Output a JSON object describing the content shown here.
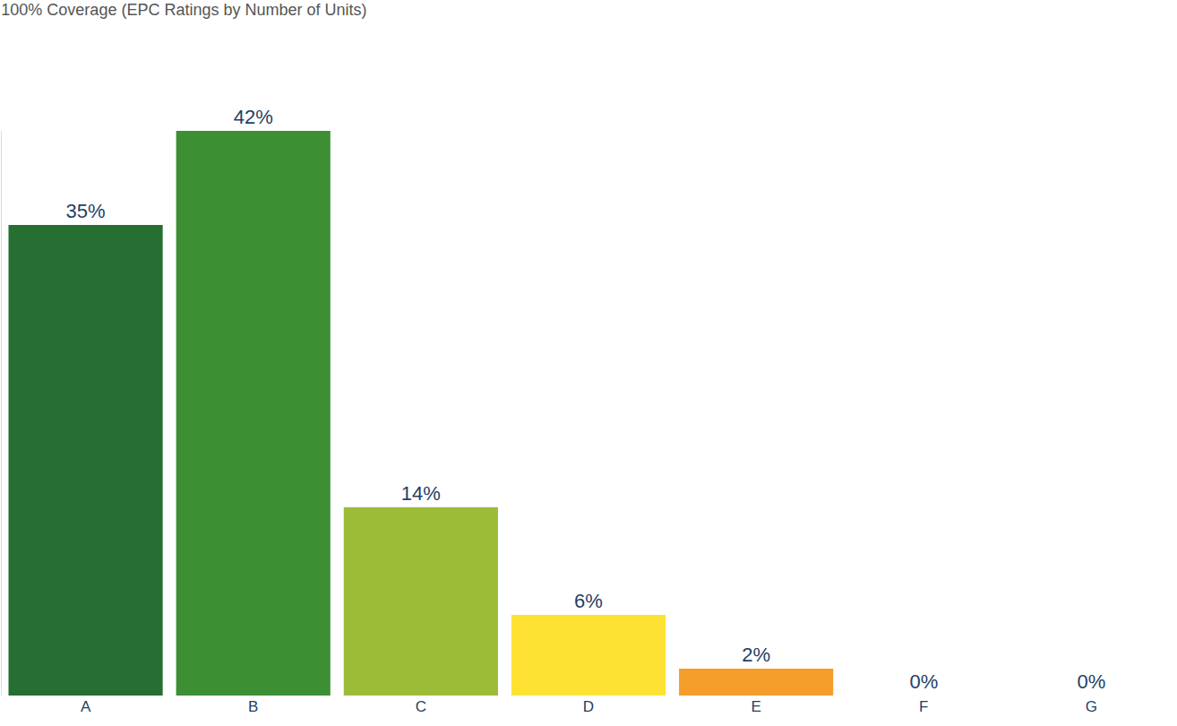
{
  "chart_data": {
    "type": "bar",
    "title": "100% Coverage (EPC Ratings by Number of Units)",
    "categories": [
      "A",
      "B",
      "C",
      "D",
      "E",
      "F",
      "G"
    ],
    "values": [
      35,
      42,
      14,
      6,
      2,
      0,
      0
    ],
    "value_labels": [
      "35%",
      "42%",
      "14%",
      "6%",
      "2%",
      "0%",
      "0%"
    ],
    "colors": [
      "#276e33",
      "#3d8f34",
      "#9cbb36",
      "#fde234",
      "#f59d2a",
      "#e0442b",
      "#c0272d"
    ],
    "ylim": [
      0,
      42
    ],
    "grid": false,
    "data_labels": true,
    "tick_labels": "x"
  }
}
